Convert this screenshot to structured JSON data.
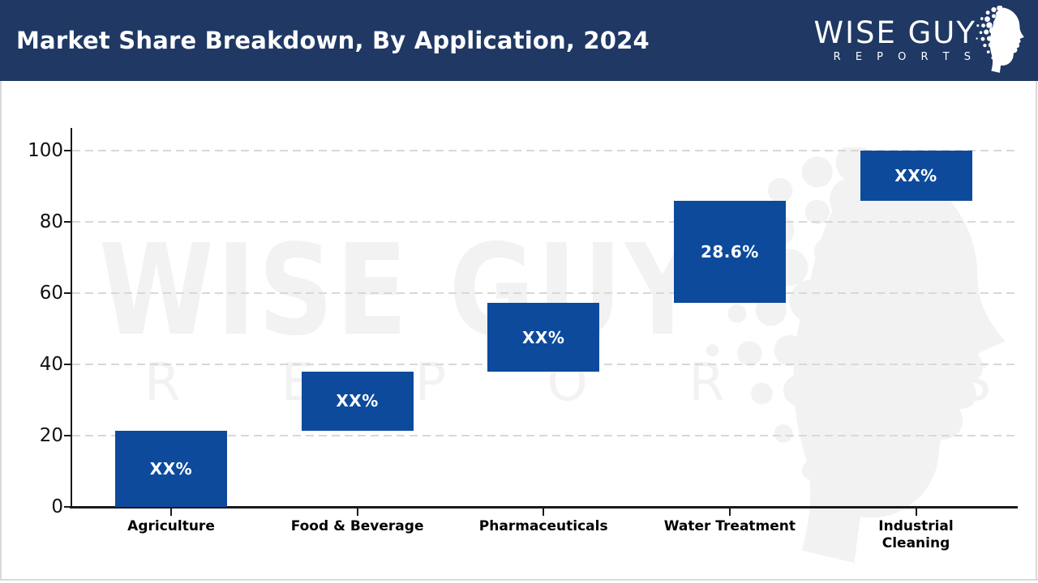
{
  "header": {
    "title": "Market Share Breakdown, By Application, 2024",
    "logo": {
      "name": "WISE GUY",
      "subtitle": "R E P O R T S"
    }
  },
  "watermark": {
    "name": "WISE GUY",
    "subtitle": "R E P O R T S"
  },
  "chart_data": {
    "type": "bar",
    "subtype": "floating-waterfall",
    "title": "Market Share Breakdown, By Application, 2024",
    "categories": [
      "Agriculture",
      "Food & Beverage",
      "Pharmaceuticals",
      "Water Treatment",
      "Industrial\nCleaning"
    ],
    "series": [
      {
        "name": "Market share (%)",
        "segments": [
          {
            "category": "Agriculture",
            "start": 0,
            "end": 21.4,
            "value_label": "XX%"
          },
          {
            "category": "Food & Beverage",
            "start": 21.4,
            "end": 38.0,
            "value_label": "XX%"
          },
          {
            "category": "Pharmaceuticals",
            "start": 38.0,
            "end": 57.2,
            "value_label": "XX%"
          },
          {
            "category": "Water Treatment",
            "start": 57.2,
            "end": 85.8,
            "value_label": "28.6%"
          },
          {
            "category": "Industrial Cleaning",
            "start": 85.8,
            "end": 100.0,
            "value_label": "XX%"
          }
        ]
      }
    ],
    "xlabel": "",
    "ylabel": "",
    "ylim": [
      0,
      100
    ],
    "yticks": [
      0,
      20,
      40,
      60,
      80,
      100
    ],
    "grid": "dashed-horizontal",
    "legend": "none",
    "bar_color": "#0d4a9c",
    "bar_label_color": "#ffffff"
  },
  "colors": {
    "header_bg": "#1f3864",
    "bar": "#0d4a9c",
    "watermark": "#f2f2f2",
    "gridline": "#d8d8d8",
    "axis": "#1a1a1a",
    "page_bg": "#ffffff"
  }
}
